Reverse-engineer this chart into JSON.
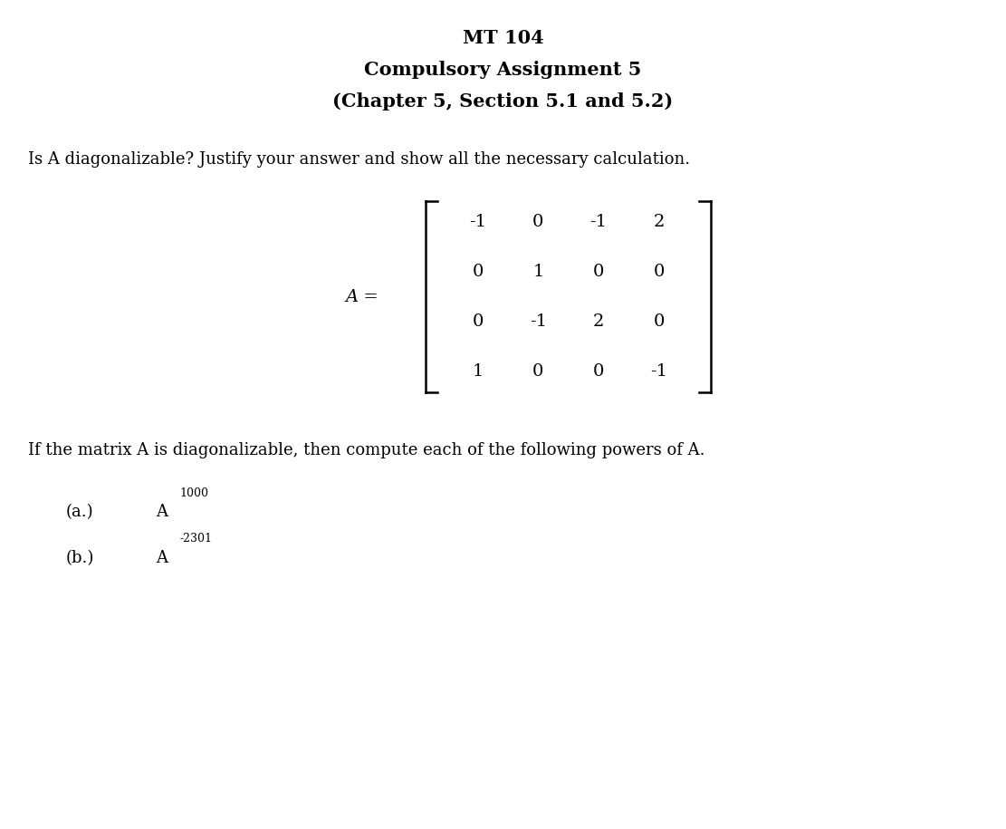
{
  "title_line1": "MT 104",
  "title_line2": "Compulsory Assignment 5",
  "title_line3": "(Chapter 5, Section 5.1 and 5.2)",
  "question1": "Is A diagonalizable? Justify your answer and show all the necessary calculation.",
  "matrix_label": "A =",
  "matrix": [
    [
      "-1",
      "0",
      "-1",
      "2"
    ],
    [
      "0",
      "1",
      "0",
      "0"
    ],
    [
      "0",
      "-1",
      "2",
      "0"
    ],
    [
      "1",
      "0",
      "0",
      "-1"
    ]
  ],
  "question2": "If the matrix A is diagonalizable, then compute each of the following powers of A.",
  "part_a_label": "(a.)",
  "part_a_base": "A",
  "part_a_exp": "1000",
  "part_b_label": "(b.)",
  "part_b_base": "A",
  "part_b_exp": "-2301",
  "bg_color": "#ffffff",
  "text_color": "#000000",
  "title_fontsize": 15,
  "body_fontsize": 13,
  "matrix_fontsize": 14,
  "label_fontsize": 14
}
